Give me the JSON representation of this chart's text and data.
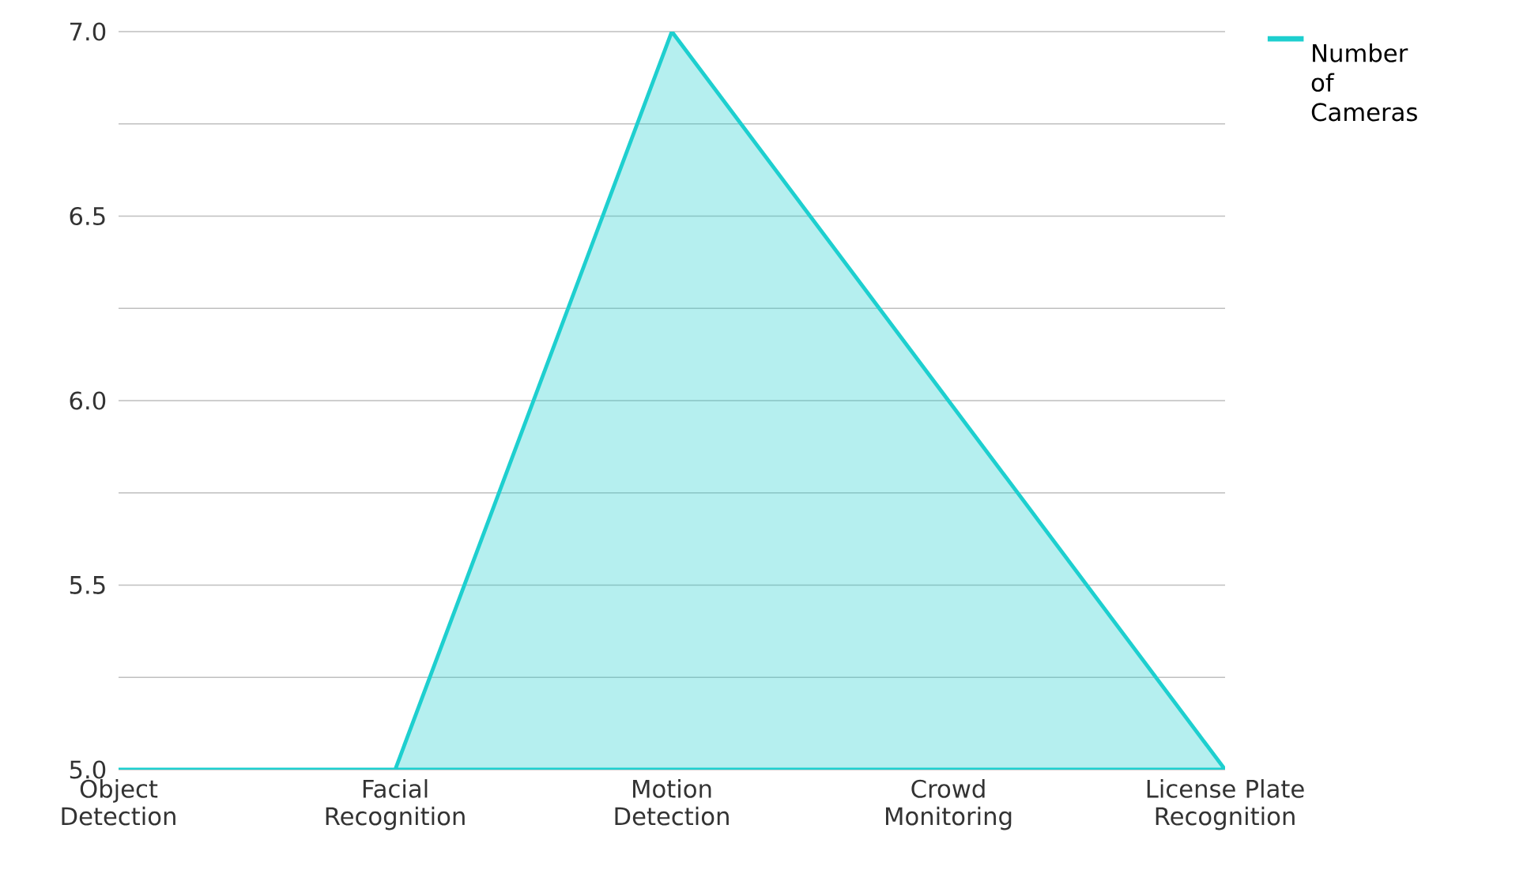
{
  "chart_data": {
    "type": "area",
    "categories": [
      "Object Detection",
      "Facial Recognition",
      "Motion Detection",
      "Crowd Monitoring",
      "License Plate Recognition"
    ],
    "series": [
      {
        "name": "Number of Cameras",
        "color": "#1ecfcf",
        "values": [
          5,
          5,
          7,
          6,
          5
        ]
      }
    ],
    "ylim": [
      5,
      7
    ],
    "yticks": [
      {
        "value": 5,
        "label": "5.0"
      },
      {
        "value": 5.25,
        "label": null
      },
      {
        "value": 5.5,
        "label": "5.5"
      },
      {
        "value": 5.75,
        "label": null
      },
      {
        "value": 6,
        "label": "6.0"
      },
      {
        "value": 6.25,
        "label": null
      },
      {
        "value": 6.5,
        "label": "6.5"
      },
      {
        "value": 6.75,
        "label": null
      },
      {
        "value": 7,
        "label": "7.0"
      }
    ],
    "grid": "y",
    "legend": "top right",
    "marker": "none",
    "line_style": "solid"
  }
}
